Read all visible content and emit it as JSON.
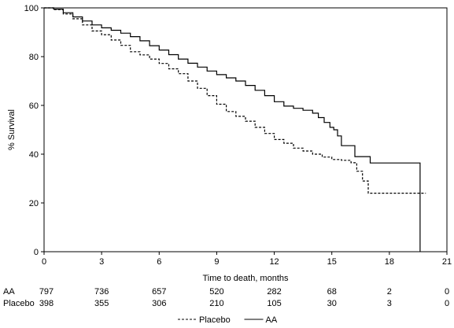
{
  "chart_data": {
    "type": "line",
    "title": "",
    "xlabel": "Time to death, months",
    "ylabel": "% Survival",
    "xlim": [
      0,
      21
    ],
    "ylim": [
      0,
      100
    ],
    "xticks": [
      "0",
      "3",
      "6",
      "9",
      "12",
      "15",
      "18",
      "21"
    ],
    "yticks": [
      "0",
      "20",
      "40",
      "60",
      "80",
      "100"
    ],
    "grid": false,
    "legend": {
      "placement": "bottom-center",
      "entries": [
        "Placebo",
        "AA"
      ]
    },
    "series": [
      {
        "name": "AA",
        "line_style": "solid",
        "x": [
          0,
          0.5,
          1,
          1.5,
          2,
          2.5,
          3,
          3.5,
          4,
          4.5,
          5,
          5.5,
          6,
          6.5,
          7,
          7.5,
          8,
          8.5,
          9,
          9.5,
          10,
          10.5,
          11,
          11.5,
          12,
          12.5,
          13,
          13.5,
          14,
          14.3,
          14.6,
          14.9,
          15.1,
          15.3,
          15.5,
          15.8,
          16.2,
          16.6,
          17.0,
          17.3,
          17.7,
          18.2,
          18.8,
          19.3,
          19.6,
          19.6
        ],
        "y": [
          100,
          99.5,
          98,
          96.3,
          94.6,
          93,
          91.8,
          90.8,
          89.6,
          88.2,
          86.5,
          84.5,
          82.7,
          80.8,
          79,
          77.3,
          75.7,
          74.1,
          72.6,
          71.3,
          70,
          68.2,
          66.2,
          64,
          61.5,
          59.7,
          58.8,
          58,
          56.8,
          55,
          53,
          51,
          50,
          47.5,
          43.5,
          43.5,
          39,
          39,
          36.4,
          36.4,
          36.4,
          36.4,
          36.4,
          36.4,
          36.4,
          0
        ]
      },
      {
        "name": "Placebo",
        "line_style": "dashed",
        "x": [
          0,
          0.5,
          1,
          1.5,
          2,
          2.5,
          3,
          3.5,
          4,
          4.5,
          5,
          5.5,
          6,
          6.5,
          7,
          7.5,
          8,
          8.5,
          9,
          9.5,
          10,
          10.5,
          11,
          11.5,
          12,
          12.5,
          13,
          13.5,
          14,
          14.5,
          15,
          15.5,
          16,
          16.3,
          16.6,
          16.9,
          17.3,
          18,
          19,
          19.9
        ],
        "y": [
          100,
          99.3,
          97.5,
          95.5,
          93,
          90.5,
          89,
          86.8,
          84.6,
          82,
          80.7,
          79,
          77.2,
          75,
          73,
          70,
          67,
          64,
          60.5,
          57.5,
          55.5,
          53.5,
          51,
          48.5,
          46,
          44.5,
          42.5,
          41.3,
          40,
          38.8,
          37.8,
          37.5,
          36.5,
          33,
          29,
          24,
          24,
          24,
          24,
          24
        ]
      }
    ],
    "risk_table": {
      "times": [
        "0",
        "3",
        "6",
        "9",
        "12",
        "15",
        "18",
        "21"
      ],
      "rows": [
        {
          "label": "AA",
          "counts": [
            "797",
            "736",
            "657",
            "520",
            "282",
            "68",
            "2",
            "0"
          ]
        },
        {
          "label": "Placebo",
          "counts": [
            "398",
            "355",
            "306",
            "210",
            "105",
            "30",
            "3",
            "0"
          ]
        }
      ]
    }
  }
}
